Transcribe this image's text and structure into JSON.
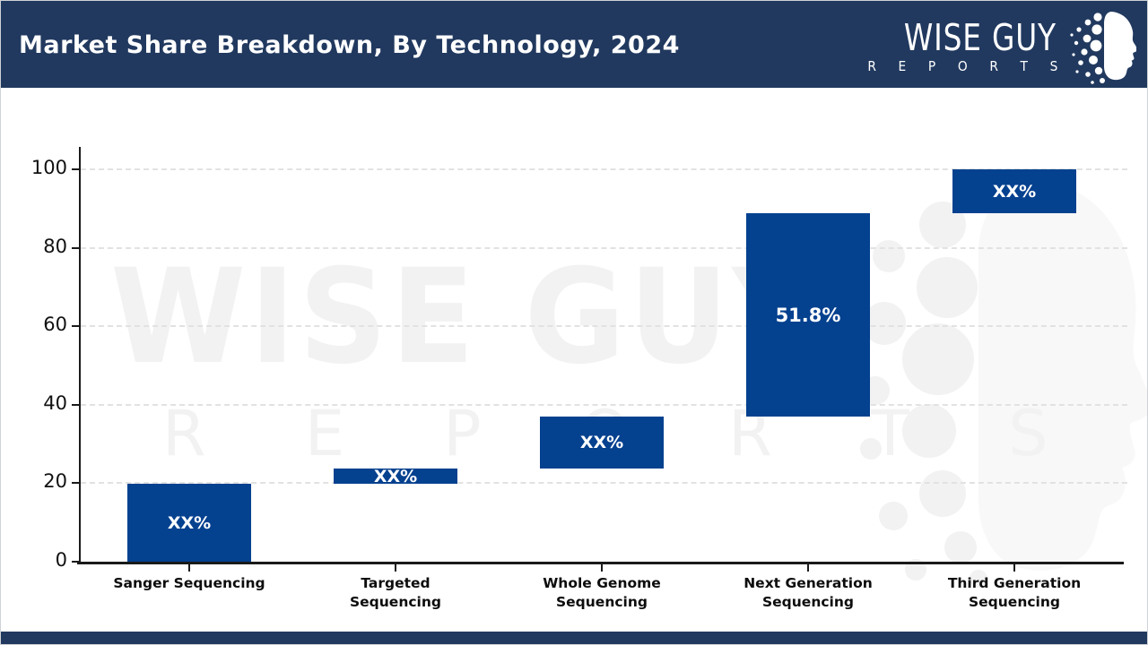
{
  "header": {
    "title": "Market Share Breakdown, By Technology, 2024",
    "background_color": "#21395f",
    "logo": {
      "line1": "WISE GUY",
      "line2": "R E P O R T S"
    }
  },
  "watermark": {
    "line1": "WISE GUY",
    "line2": "R E P O R T S"
  },
  "footer": {
    "background_color": "#21395f"
  },
  "chart_data": {
    "type": "bar",
    "subtype": "waterfall",
    "title": "Market Share Breakdown, By Technology, 2024",
    "unit": "%",
    "bar_color": "#04418f",
    "value_label_color": "#ffffff",
    "grid": "horizontal-dashed",
    "legend": "none",
    "ylim": [
      0,
      105
    ],
    "y_ticks": [
      0,
      20,
      40,
      60,
      80,
      100
    ],
    "categories": [
      "Sanger Sequencing",
      "Targeted Sequencing",
      "Whole Genome Sequencing",
      "Next Generation Sequencing",
      "Third Generation Sequencing"
    ],
    "segments": [
      {
        "category": "Sanger Sequencing",
        "category_lines": [
          "Sanger Sequencing"
        ],
        "start": 0,
        "end": 19.8,
        "label": "XX%"
      },
      {
        "category": "Targeted Sequencing",
        "category_lines": [
          "Targeted",
          "Sequencing"
        ],
        "start": 19.8,
        "end": 23.8,
        "label": "XX%"
      },
      {
        "category": "Whole Genome Sequencing",
        "category_lines": [
          "Whole Genome",
          "Sequencing"
        ],
        "start": 23.8,
        "end": 36.9,
        "label": "XX%"
      },
      {
        "category": "Next Generation Sequencing",
        "category_lines": [
          "Next Generation",
          "Sequencing"
        ],
        "start": 36.9,
        "end": 88.7,
        "label": "51.8%"
      },
      {
        "category": "Third Generation Sequencing",
        "category_lines": [
          "Third Generation",
          "Sequencing"
        ],
        "start": 88.7,
        "end": 100,
        "label": "XX%"
      }
    ]
  }
}
